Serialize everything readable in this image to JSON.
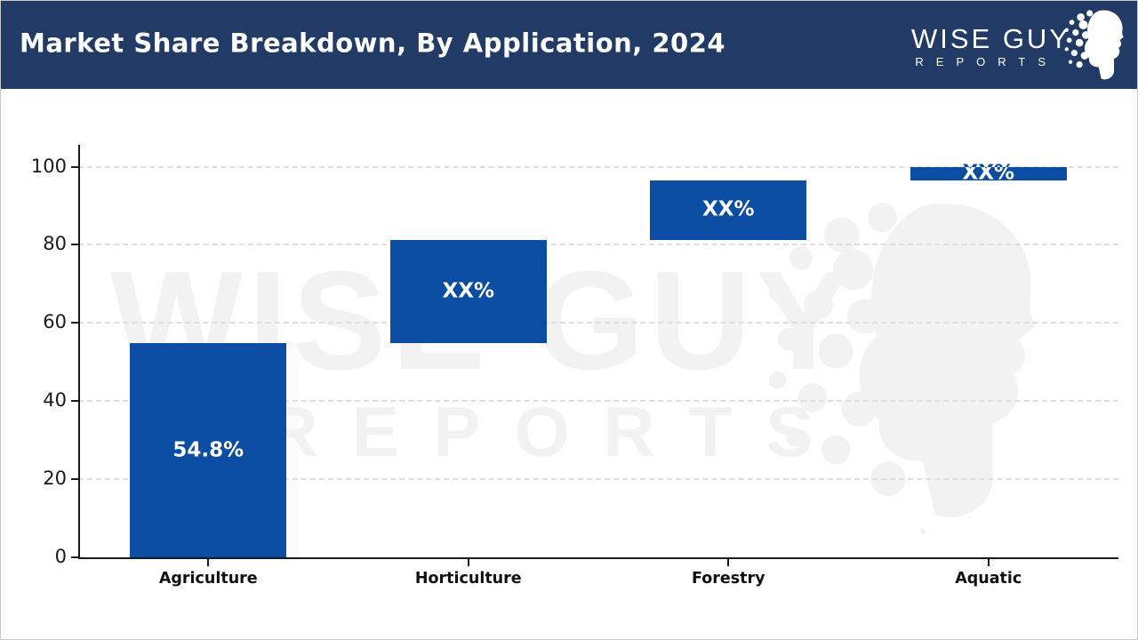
{
  "header": {
    "title": "Market Share Breakdown, By Application, 2024",
    "logo": {
      "line1": "WISE GUY",
      "line2": "REPORTS",
      "icon": "face-profile-dots-icon"
    }
  },
  "watermark": {
    "line1": "WISE GUY",
    "line2": "REPORTS",
    "icon": "face-profile-dots-icon"
  },
  "chart_data": {
    "type": "bar",
    "subtype": "waterfall-percentage",
    "title": "Market Share Breakdown, By Application, 2024",
    "categories": [
      "Agriculture",
      "Horticulture",
      "Forestry",
      "Aquatic"
    ],
    "segments": [
      {
        "category": "Agriculture",
        "start": 0,
        "end": 54.8,
        "label": "54.8%"
      },
      {
        "category": "Horticulture",
        "start": 54.8,
        "end": 81.3,
        "label": "XX%"
      },
      {
        "category": "Forestry",
        "start": 81.3,
        "end": 96.6,
        "label": "XX%"
      },
      {
        "category": "Aquatic",
        "start": 96.6,
        "end": 100,
        "label": "XX%"
      }
    ],
    "xlabel": "",
    "ylabel": "",
    "ylim": [
      0,
      105.6
    ],
    "yticks": [
      0,
      20,
      40,
      60,
      80,
      100
    ],
    "grid": "horizontal-dashed",
    "legend": "none",
    "bar_color": "#0b4da2",
    "bar_label_color": "#ffffff"
  },
  "colors": {
    "header_bg": "#213a66",
    "bar": "#0b4da2",
    "grid": "#dedede",
    "axis": "#1a1a1a",
    "watermark": "#f2f2f2",
    "frame_border": "#c9c9c9"
  }
}
